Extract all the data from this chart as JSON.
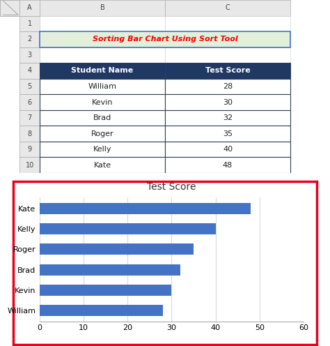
{
  "title_text": "Sorting Bar Chart Using Sort Tool",
  "title_color": "#FF0000",
  "title_bg_color": "#E2EFDA",
  "table_headers": [
    "Student Name",
    "Test Score"
  ],
  "table_header_bg": "#1F3864",
  "table_header_text_color": "#FFFFFF",
  "table_rows": [
    [
      "William",
      "28"
    ],
    [
      "Kevin",
      "30"
    ],
    [
      "Brad",
      "32"
    ],
    [
      "Roger",
      "35"
    ],
    [
      "Kelly",
      "40"
    ],
    [
      "Kate",
      "48"
    ]
  ],
  "chart_title": "Test Score",
  "chart_students": [
    "William",
    "Kevin",
    "Brad",
    "Roger",
    "Kelly",
    "Kate"
  ],
  "chart_values": [
    28,
    30,
    32,
    35,
    40,
    48
  ],
  "bar_color": "#4472C4",
  "chart_xlim": [
    0,
    60
  ],
  "chart_xticks": [
    0,
    10,
    20,
    30,
    40,
    50,
    60
  ],
  "chart_bg": "#FFFFFF",
  "chart_border_color": "#E8001C",
  "grid_line_color": "#D9D9D9",
  "excel_header_bg": "#E8E8E8",
  "excel_header_fg": "#333333",
  "excel_cell_border": "#BBBBBB",
  "n_rows": 10,
  "col_labels": [
    "A",
    "B",
    "C"
  ],
  "row_nums": [
    "1",
    "2",
    "3",
    "4",
    "5",
    "6",
    "7",
    "8",
    "9",
    "10"
  ],
  "table_cell_border": "#2E4057"
}
